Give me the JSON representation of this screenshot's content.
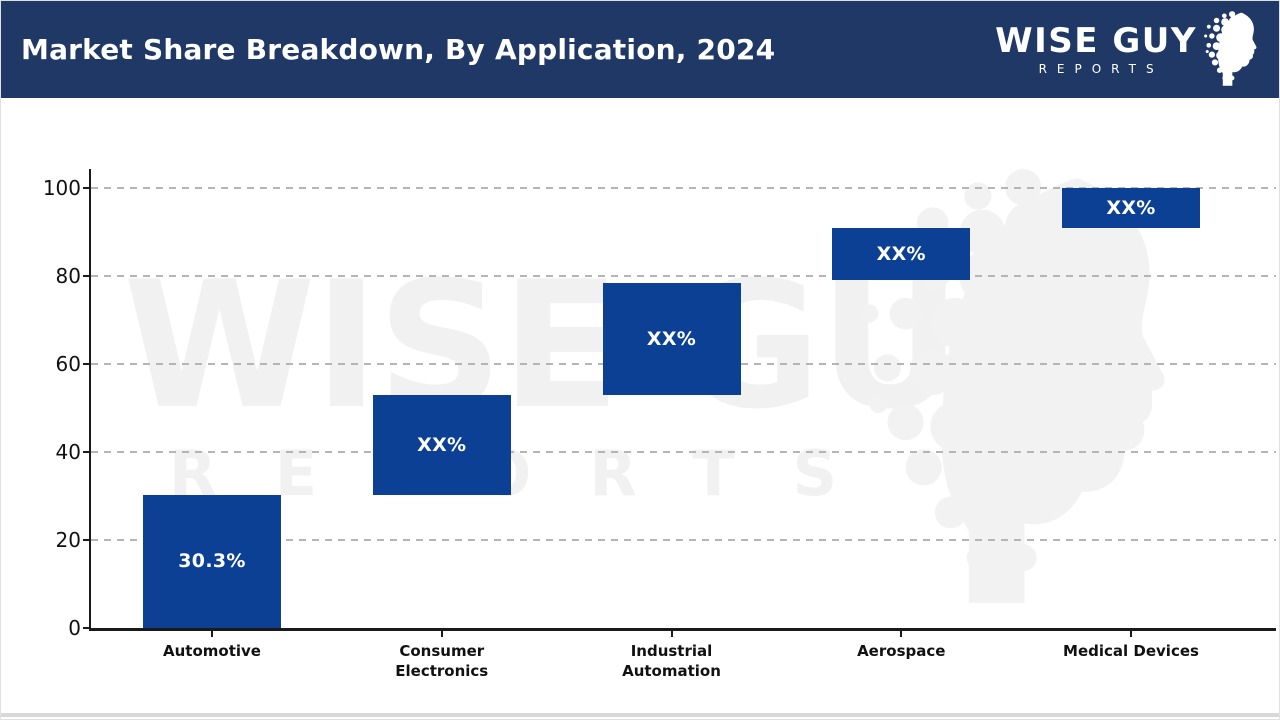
{
  "header": {
    "title": "Market Share Breakdown, By Application, 2024",
    "logo": {
      "line1": "WISE GUY",
      "line2": "REPORTS"
    }
  },
  "watermark": {
    "line1": "WISE GUY",
    "line2": "REPORTS"
  },
  "colors": {
    "header_bg": "#1f3866",
    "bar": "#0b4094",
    "bar_label": "#ffffff",
    "grid": "#b5b5b5",
    "axis": "#1a1a1a",
    "watermark": "#f1f1f1"
  },
  "chart_data": {
    "type": "bar",
    "subtype": "waterfall",
    "title": "Market Share Breakdown, By Application, 2024",
    "categories": [
      "Automotive",
      "Consumer\nElectronics",
      "Industrial\nAutomation",
      "Aerospace",
      "Medical Devices"
    ],
    "segments": [
      {
        "category": "Automotive",
        "start": 0,
        "end": 30.3,
        "label": "30.3%"
      },
      {
        "category": "Consumer Electronics",
        "start": 30.3,
        "end": 53,
        "label": "XX%"
      },
      {
        "category": "Industrial Automation",
        "start": 53,
        "end": 78.5,
        "label": "XX%"
      },
      {
        "category": "Aerospace",
        "start": 79,
        "end": 91,
        "label": "XX%"
      },
      {
        "category": "Medical Devices",
        "start": 91,
        "end": 100,
        "label": "XX%"
      }
    ],
    "yticks": [
      0,
      20,
      40,
      60,
      80,
      100
    ],
    "ylim": [
      0,
      100
    ],
    "xlabel": "",
    "ylabel": "",
    "grid": "dashed horizontal",
    "legend": "none"
  }
}
